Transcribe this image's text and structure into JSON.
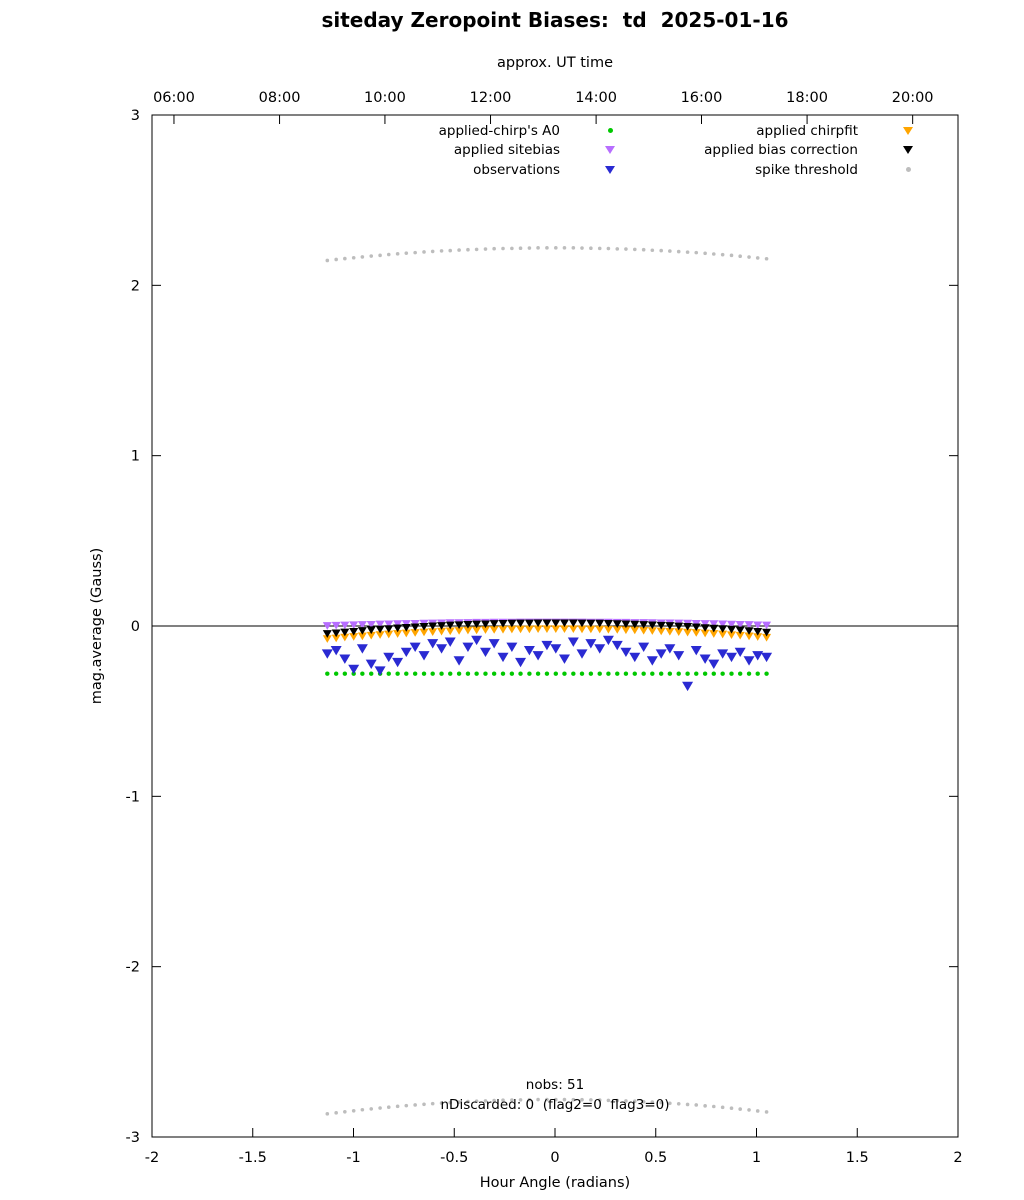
{
  "chart_data": {
    "type": "scatter",
    "title": "siteday Zeropoint Biases:  td  2025-01-16",
    "x2label": "approx. UT time",
    "xlabel": "Hour Angle (radians)",
    "ylabel": "mag.average (Gauss)",
    "xlim": [
      -2,
      2
    ],
    "ylim": [
      -3,
      3
    ],
    "grid": false,
    "zero_line": true,
    "x_ticks": [
      {
        "value": -2,
        "label": "-2"
      },
      {
        "value": -1.5,
        "label": "-1.5"
      },
      {
        "value": -1,
        "label": "-1"
      },
      {
        "value": -0.5,
        "label": "-0.5"
      },
      {
        "value": 0,
        "label": "0"
      },
      {
        "value": 0.5,
        "label": "0.5"
      },
      {
        "value": 1,
        "label": "1"
      },
      {
        "value": 1.5,
        "label": "1.5"
      },
      {
        "value": 2,
        "label": "2"
      }
    ],
    "x2_ticks": [
      {
        "value": -1.891,
        "label": "06:00"
      },
      {
        "value": -1.367,
        "label": "08:00"
      },
      {
        "value": -0.844,
        "label": "10:00"
      },
      {
        "value": -0.32,
        "label": "12:00"
      },
      {
        "value": 0.204,
        "label": "14:00"
      },
      {
        "value": 0.727,
        "label": "16:00"
      },
      {
        "value": 1.251,
        "label": "18:00"
      },
      {
        "value": 1.775,
        "label": "20:00"
      }
    ],
    "y_ticks": [
      {
        "value": -3,
        "label": "-3"
      },
      {
        "value": -2,
        "label": "-2"
      },
      {
        "value": -1,
        "label": "-1"
      },
      {
        "value": 0,
        "label": "0"
      },
      {
        "value": 1,
        "label": "1"
      },
      {
        "value": 2,
        "label": "2"
      },
      {
        "value": 3,
        "label": "3"
      }
    ],
    "legend": {
      "position": "top-inside",
      "columns": 2,
      "col1": [
        {
          "label": "applied-chirp's A0",
          "marker": "dot",
          "color": "#00c800"
        },
        {
          "label": "applied sitebias",
          "marker": "triangle-down",
          "color": "#b76eff"
        },
        {
          "label": "observations",
          "marker": "triangle-down",
          "color": "#2a2ad2"
        }
      ],
      "col2": [
        {
          "label": "applied chirpfit",
          "marker": "triangle-down",
          "color": "#ffa500"
        },
        {
          "label": "applied bias correction",
          "marker": "triangle-down",
          "color": "#000000"
        },
        {
          "label": "spike threshold",
          "marker": "dot",
          "color": "#bdbdbd"
        }
      ]
    },
    "annotations": [
      {
        "text": "nobs: 51",
        "x": 0,
        "y": -2.69
      },
      {
        "text": "nDiscarded: 0  (flag2=0  flag3=0)",
        "x": 0,
        "y": -2.81
      }
    ],
    "nobs": 51,
    "x": [
      -1.13,
      -1.086,
      -1.043,
      -0.999,
      -0.956,
      -0.912,
      -0.868,
      -0.825,
      -0.781,
      -0.738,
      -0.694,
      -0.65,
      -0.607,
      -0.563,
      -0.52,
      -0.476,
      -0.432,
      -0.389,
      -0.345,
      -0.302,
      -0.258,
      -0.214,
      -0.171,
      -0.127,
      -0.084,
      -0.04,
      0.004,
      0.047,
      0.091,
      0.134,
      0.178,
      0.222,
      0.265,
      0.309,
      0.352,
      0.396,
      0.44,
      0.483,
      0.527,
      0.57,
      0.614,
      0.658,
      0.701,
      0.745,
      0.788,
      0.832,
      0.876,
      0.919,
      0.963,
      1.006,
      1.05
    ],
    "series": [
      {
        "name": "applied-chirp's A0",
        "marker": "dot",
        "color": "#00c800",
        "size": 2.2,
        "values": [
          -0.28,
          -0.28,
          -0.28,
          -0.28,
          -0.28,
          -0.28,
          -0.28,
          -0.28,
          -0.28,
          -0.28,
          -0.28,
          -0.28,
          -0.28,
          -0.28,
          -0.28,
          -0.28,
          -0.28,
          -0.28,
          -0.28,
          -0.28,
          -0.28,
          -0.28,
          -0.28,
          -0.28,
          -0.28,
          -0.28,
          -0.28,
          -0.28,
          -0.28,
          -0.28,
          -0.28,
          -0.28,
          -0.28,
          -0.28,
          -0.28,
          -0.28,
          -0.28,
          -0.28,
          -0.28,
          -0.28,
          -0.28,
          -0.28,
          -0.28,
          -0.28,
          -0.28,
          -0.28,
          -0.28,
          -0.28,
          -0.28,
          -0.28,
          -0.28
        ]
      },
      {
        "name": "applied chirpfit",
        "marker": "triangle-down",
        "color": "#ffa500",
        "size": 4.5,
        "values": [
          -0.073,
          -0.069,
          -0.064,
          -0.06,
          -0.057,
          -0.053,
          -0.049,
          -0.046,
          -0.043,
          -0.04,
          -0.037,
          -0.034,
          -0.032,
          -0.029,
          -0.027,
          -0.025,
          -0.023,
          -0.022,
          -0.02,
          -0.019,
          -0.018,
          -0.017,
          -0.016,
          -0.016,
          -0.015,
          -0.015,
          -0.015,
          -0.015,
          -0.015,
          -0.016,
          -0.016,
          -0.017,
          -0.018,
          -0.019,
          -0.021,
          -0.022,
          -0.024,
          -0.026,
          -0.028,
          -0.03,
          -0.032,
          -0.035,
          -0.037,
          -0.04,
          -0.043,
          -0.046,
          -0.05,
          -0.053,
          -0.057,
          -0.061,
          -0.065
        ]
      },
      {
        "name": "applied sitebias",
        "marker": "triangle-down",
        "color": "#b76eff",
        "size": 4.5,
        "values": [
          0.004,
          0.006,
          0.007,
          0.009,
          0.01,
          0.011,
          0.013,
          0.014,
          0.015,
          0.016,
          0.017,
          0.018,
          0.019,
          0.02,
          0.021,
          0.021,
          0.022,
          0.023,
          0.023,
          0.024,
          0.024,
          0.024,
          0.025,
          0.025,
          0.025,
          0.025,
          0.025,
          0.025,
          0.025,
          0.025,
          0.024,
          0.024,
          0.024,
          0.023,
          0.023,
          0.022,
          0.022,
          0.021,
          0.02,
          0.02,
          0.019,
          0.018,
          0.017,
          0.016,
          0.015,
          0.014,
          0.012,
          0.011,
          0.01,
          0.008,
          0.007
        ]
      },
      {
        "name": "applied bias correction",
        "marker": "triangle-down",
        "color": "#000000",
        "size": 4.5,
        "values": [
          -0.043,
          -0.039,
          -0.034,
          -0.03,
          -0.025,
          -0.021,
          -0.017,
          -0.014,
          -0.01,
          -0.007,
          -0.004,
          -0.001,
          0.002,
          0.004,
          0.007,
          0.009,
          0.011,
          0.013,
          0.014,
          0.016,
          0.017,
          0.018,
          0.019,
          0.019,
          0.02,
          0.02,
          0.02,
          0.02,
          0.02,
          0.019,
          0.018,
          0.018,
          0.017,
          0.015,
          0.014,
          0.012,
          0.01,
          0.008,
          0.006,
          0.004,
          0.001,
          -0.001,
          -0.004,
          -0.008,
          -0.011,
          -0.014,
          -0.018,
          -0.022,
          -0.026,
          -0.03,
          -0.035
        ]
      },
      {
        "name": "observations",
        "marker": "triangle-down",
        "color": "#2a2ad2",
        "size": 5.5,
        "values": [
          -0.16,
          -0.14,
          -0.19,
          -0.25,
          -0.13,
          -0.22,
          -0.26,
          -0.18,
          -0.21,
          -0.15,
          -0.12,
          -0.17,
          -0.1,
          -0.13,
          -0.09,
          -0.2,
          -0.12,
          -0.08,
          -0.15,
          -0.1,
          -0.18,
          -0.12,
          -0.21,
          -0.14,
          -0.17,
          -0.11,
          -0.13,
          -0.19,
          -0.09,
          -0.16,
          -0.1,
          -0.13,
          -0.08,
          -0.11,
          -0.15,
          -0.18,
          -0.12,
          -0.2,
          -0.16,
          -0.13,
          -0.17,
          -0.35,
          -0.14,
          -0.19,
          -0.22,
          -0.16,
          -0.18,
          -0.15,
          -0.2,
          -0.17,
          -0.18
        ]
      },
      {
        "name": "spike threshold (upper)",
        "marker": "dot",
        "color": "#bdbdbd",
        "size": 1.8,
        "values": [
          2.146,
          2.152,
          2.157,
          2.162,
          2.167,
          2.172,
          2.176,
          2.181,
          2.185,
          2.189,
          2.192,
          2.196,
          2.199,
          2.202,
          2.204,
          2.207,
          2.209,
          2.211,
          2.213,
          2.215,
          2.216,
          2.217,
          2.218,
          2.219,
          2.22,
          2.22,
          2.22,
          2.22,
          2.22,
          2.219,
          2.218,
          2.217,
          2.216,
          2.214,
          2.213,
          2.211,
          2.209,
          2.206,
          2.204,
          2.201,
          2.198,
          2.195,
          2.192,
          2.188,
          2.184,
          2.18,
          2.176,
          2.171,
          2.166,
          2.161,
          2.156
        ]
      },
      {
        "name": "spike threshold (lower)",
        "marker": "dot",
        "color": "#bdbdbd",
        "size": 1.8,
        "values": [
          -2.864,
          -2.858,
          -2.852,
          -2.846,
          -2.84,
          -2.835,
          -2.83,
          -2.825,
          -2.82,
          -2.816,
          -2.812,
          -2.808,
          -2.804,
          -2.801,
          -2.798,
          -2.795,
          -2.792,
          -2.79,
          -2.788,
          -2.786,
          -2.784,
          -2.783,
          -2.782,
          -2.781,
          -2.78,
          -2.78,
          -2.78,
          -2.78,
          -2.781,
          -2.781,
          -2.782,
          -2.783,
          -2.785,
          -2.786,
          -2.788,
          -2.79,
          -2.793,
          -2.795,
          -2.798,
          -2.802,
          -2.805,
          -2.809,
          -2.812,
          -2.817,
          -2.821,
          -2.826,
          -2.831,
          -2.836,
          -2.841,
          -2.847,
          -2.853
        ]
      }
    ]
  }
}
